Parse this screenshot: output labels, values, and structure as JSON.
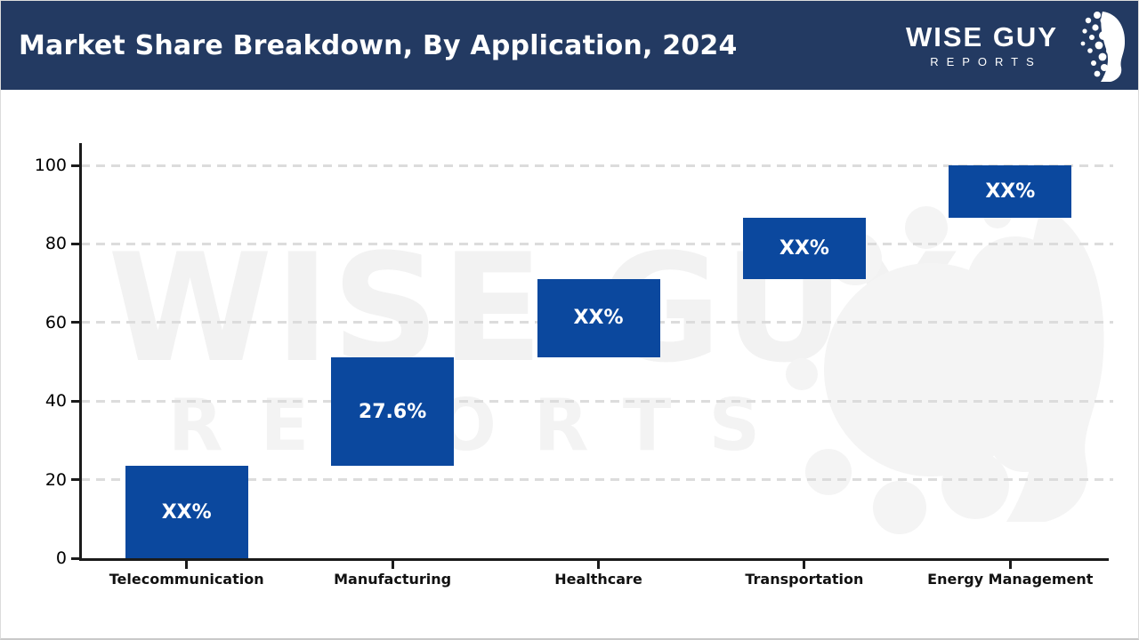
{
  "header": {
    "title": "Market Share Breakdown, By Application, 2024",
    "bg_color": "#233a62",
    "logo": {
      "line1": "WISE GUY",
      "line2": "REPORTS"
    }
  },
  "watermark": {
    "line1": "WISE GUY",
    "line2": "REPORTS"
  },
  "chart_data": {
    "type": "bar",
    "subtype": "floating-waterfall",
    "title": "Market Share Breakdown, By Application, 2024",
    "categories": [
      "Telecommunication",
      "Manufacturing",
      "Healthcare",
      "Transportation",
      "Energy Management"
    ],
    "series": [
      {
        "name": "Market Share (%)",
        "segments": [
          {
            "category": "Telecommunication",
            "start": 0,
            "end": 23.5,
            "label": "XX%"
          },
          {
            "category": "Manufacturing",
            "start": 23.5,
            "end": 51.1,
            "label": "27.6%",
            "value": 27.6
          },
          {
            "category": "Healthcare",
            "start": 51.1,
            "end": 71.1,
            "label": "XX%"
          },
          {
            "category": "Transportation",
            "start": 71.1,
            "end": 86.6,
            "label": "XX%"
          },
          {
            "category": "Energy Management",
            "start": 86.6,
            "end": 100,
            "label": "XX%"
          }
        ]
      }
    ],
    "ylim": [
      0,
      100
    ],
    "yticks": [
      0,
      20,
      40,
      60,
      80,
      100
    ],
    "grid": "horizontal-dashed",
    "legend": "none",
    "bar_color": "#0b489e",
    "bar_label_color": "#ffffff",
    "axis_color": "#1b1b1b"
  }
}
